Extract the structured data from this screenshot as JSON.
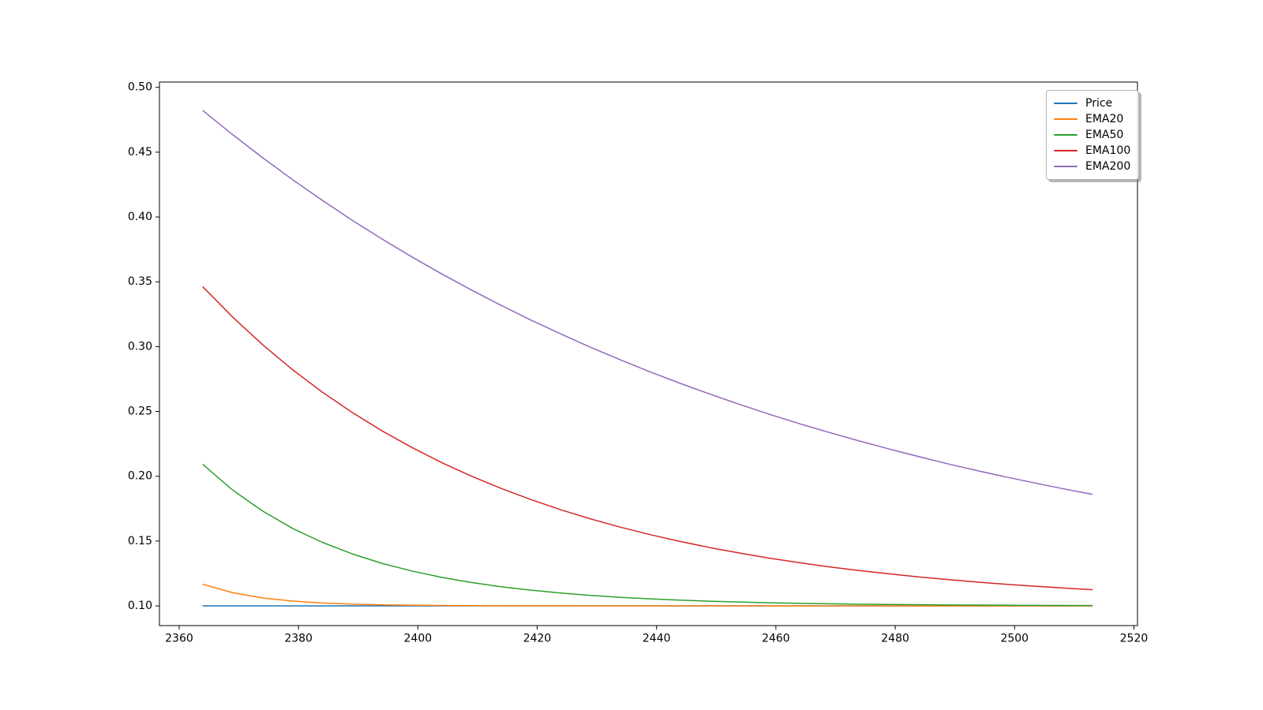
{
  "figure": {
    "background_color": "#ffffff",
    "axes_edge_color": "#000000",
    "tick_color": "#000000"
  },
  "chart_data": {
    "type": "line",
    "title": "",
    "xlabel": "",
    "ylabel": "",
    "grid": false,
    "xlim": [
      2356.7,
      2520.6
    ],
    "ylim": [
      0.0848,
      0.5041
    ],
    "x_ticks": [
      2360,
      2380,
      2400,
      2420,
      2440,
      2460,
      2480,
      2500,
      2520
    ],
    "x_tick_labels": [
      "2360",
      "2380",
      "2400",
      "2420",
      "2440",
      "2460",
      "2480",
      "2500",
      "2520"
    ],
    "y_ticks": [
      0.1,
      0.15,
      0.2,
      0.25,
      0.3,
      0.35,
      0.4,
      0.45,
      0.5
    ],
    "y_tick_labels": [
      "0.10",
      "0.15",
      "0.20",
      "0.25",
      "0.30",
      "0.35",
      "0.40",
      "0.45",
      "0.50"
    ],
    "legend": {
      "position": "upper right"
    },
    "x": [
      2364,
      2369,
      2374,
      2379,
      2384,
      2389,
      2394,
      2399,
      2404,
      2409,
      2414,
      2419,
      2424,
      2429,
      2434,
      2439,
      2444,
      2449,
      2454,
      2459,
      2464,
      2469,
      2474,
      2479,
      2484,
      2489,
      2494,
      2499,
      2504,
      2509,
      2513
    ],
    "series": [
      {
        "name": "Price",
        "color": "#1f77b4",
        "values": [
          0.1,
          0.1,
          0.1,
          0.1,
          0.1,
          0.1,
          0.1,
          0.1,
          0.1,
          0.1,
          0.1,
          0.1,
          0.1,
          0.1,
          0.1,
          0.1,
          0.1,
          0.1,
          0.1,
          0.1,
          0.1,
          0.1,
          0.1,
          0.1,
          0.1,
          0.1,
          0.1,
          0.1,
          0.1,
          0.1,
          0.1
        ]
      },
      {
        "name": "EMA20",
        "color": "#ff7f0e",
        "values": [
          0.1166,
          0.1101,
          0.1061,
          0.1037,
          0.1022,
          0.1014,
          0.1008,
          0.1005,
          0.1003,
          0.1002,
          0.1001,
          0.1001,
          0.1001,
          0.1,
          0.1,
          0.1,
          0.1,
          0.1,
          0.1,
          0.1,
          0.1,
          0.1,
          0.1,
          0.1,
          0.1,
          0.1,
          0.1,
          0.1,
          0.1,
          0.1,
          0.1
        ]
      },
      {
        "name": "EMA50",
        "color": "#2ca02c",
        "values": [
          0.209,
          0.1892,
          0.1731,
          0.1598,
          0.149,
          0.1401,
          0.1328,
          0.1269,
          0.122,
          0.118,
          0.1147,
          0.1121,
          0.1099,
          0.1081,
          0.1066,
          0.1054,
          0.1044,
          0.1036,
          0.103,
          0.1024,
          0.102,
          0.1016,
          0.1013,
          0.1011,
          0.1009,
          0.1007,
          0.1006,
          0.1005,
          0.1004,
          0.1003,
          0.1003
        ]
      },
      {
        "name": "EMA100",
        "color": "#d62728",
        "values": [
          0.346,
          0.3226,
          0.3014,
          0.2822,
          0.2649,
          0.2492,
          0.235,
          0.2222,
          0.2105,
          0.2,
          0.1905,
          0.1819,
          0.1741,
          0.167,
          0.1607,
          0.1549,
          0.1497,
          0.1449,
          0.1407,
          0.1368,
          0.1333,
          0.1301,
          0.1273,
          0.1247,
          0.1223,
          0.1202,
          0.1183,
          0.1165,
          0.115,
          0.1135,
          0.1125
        ]
      },
      {
        "name": "EMA200",
        "color": "#9467bd",
        "values": [
          0.482,
          0.4634,
          0.4457,
          0.4288,
          0.4128,
          0.3975,
          0.383,
          0.3692,
          0.3561,
          0.3436,
          0.3317,
          0.3204,
          0.3097,
          0.2994,
          0.2897,
          0.2804,
          0.2716,
          0.2633,
          0.2553,
          0.2477,
          0.2405,
          0.2337,
          0.2272,
          0.221,
          0.2151,
          0.2094,
          0.2041,
          0.199,
          0.1942,
          0.1896,
          0.1861
        ]
      }
    ]
  }
}
